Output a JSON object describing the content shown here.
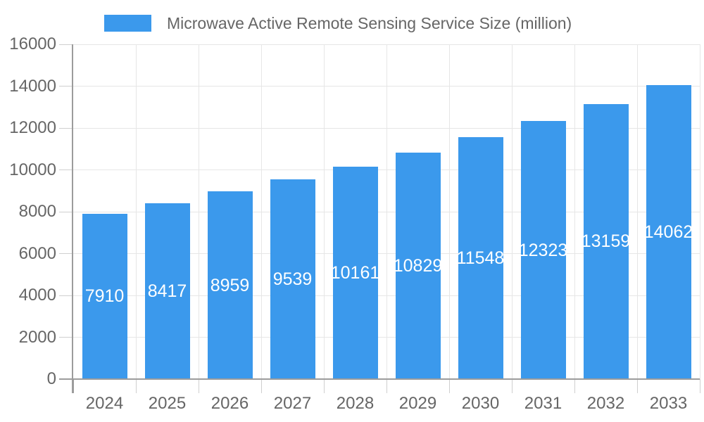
{
  "legend": {
    "label": "Microwave Active Remote Sensing Service Size (million)"
  },
  "chart_data": {
    "type": "bar",
    "title": "Microwave Active Remote Sensing Service Size (million)",
    "categories": [
      "2024",
      "2025",
      "2026",
      "2027",
      "2028",
      "2029",
      "2030",
      "2031",
      "2032",
      "2033"
    ],
    "series": [
      {
        "name": "Microwave Active Remote Sensing Service Size (million)",
        "values": [
          7910,
          8417,
          8959,
          9539,
          10161,
          10829,
          11548,
          12323,
          13159,
          14062
        ]
      }
    ],
    "xlabel": "",
    "ylabel": "",
    "ylim": [
      0,
      16000
    ],
    "yticks": [
      0,
      2000,
      4000,
      6000,
      8000,
      10000,
      12000,
      14000,
      16000
    ],
    "grid": true,
    "legend_position": "top-center",
    "value_label_position": "inside-center",
    "colors": {
      "bar": "#3b99ec",
      "grid": "#e6e6e6",
      "tick": "#cfcfcf",
      "axis": "#9c9c9c",
      "text": "#666666",
      "value_label": "#ffffff",
      "background": "#ffffff"
    }
  }
}
